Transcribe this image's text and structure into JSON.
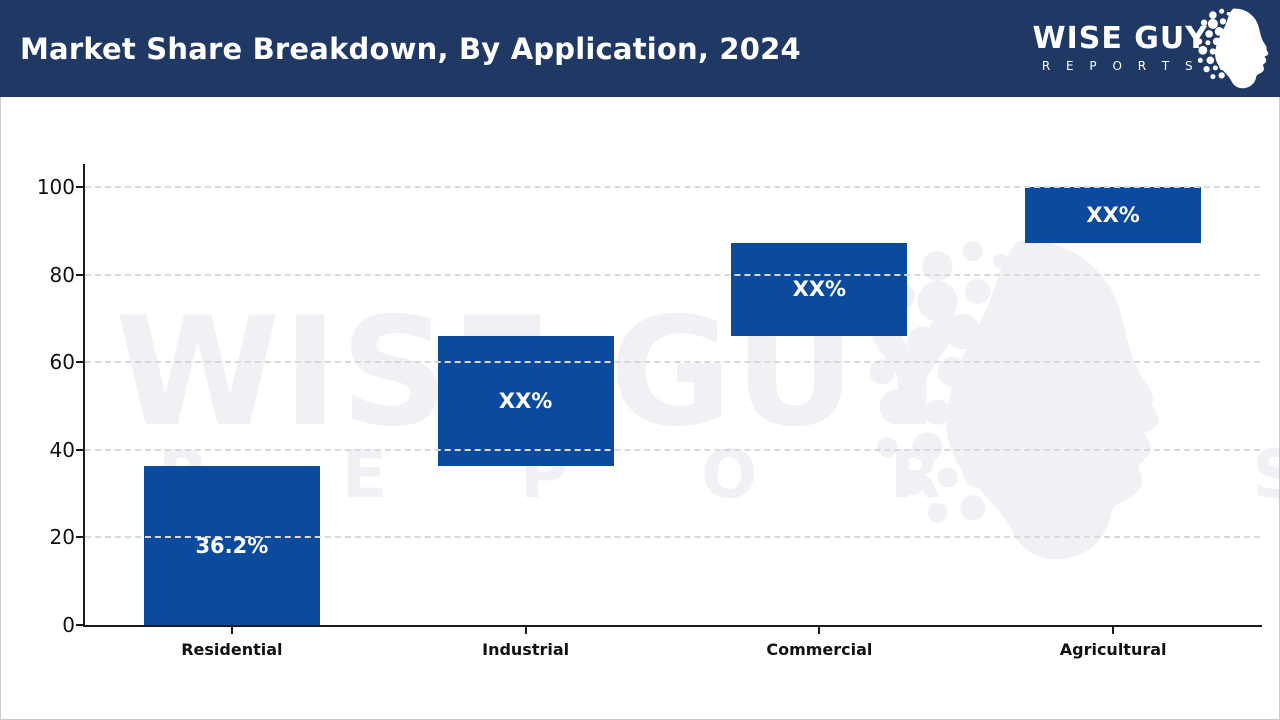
{
  "page": {
    "border_color": "#c9c9c9",
    "background": "#ffffff"
  },
  "header": {
    "bg_color": "#1f3864",
    "title": "Market Share Breakdown, By Application, 2024",
    "logo": {
      "line1": "WISE GUY",
      "line2": "R E P O R T S"
    }
  },
  "watermark": {
    "line1": "WISE GUY",
    "line2": "R E P O R T S"
  },
  "chart_data": {
    "type": "bar",
    "subtype": "floating-waterfall",
    "title": "Market Share Breakdown, By Application, 2024",
    "categories": [
      "Residential",
      "Industrial",
      "Commercial",
      "Agricultural"
    ],
    "bars": [
      {
        "category": "Residential",
        "start": 0,
        "end": 36.2,
        "value": 36.2,
        "label": "36.2%"
      },
      {
        "category": "Industrial",
        "start": 36.2,
        "end": 66.0,
        "value": 29.8,
        "label": "XX%"
      },
      {
        "category": "Commercial",
        "start": 66.0,
        "end": 87.2,
        "value": 21.2,
        "label": "XX%"
      },
      {
        "category": "Agricultural",
        "start": 87.2,
        "end": 100.0,
        "value": 12.8,
        "label": "XX%"
      }
    ],
    "bar_color": "#0c4a9e",
    "bar_label_color": "#ffffff",
    "xlabel": "",
    "ylabel": "",
    "yticks": [
      0,
      20,
      40,
      60,
      80,
      100
    ],
    "ylim": [
      0,
      105
    ],
    "grid": "dashed-horizontal",
    "grid_color": "#d9d9d9",
    "axis_color": "#1a1a1a",
    "legend": "none"
  }
}
